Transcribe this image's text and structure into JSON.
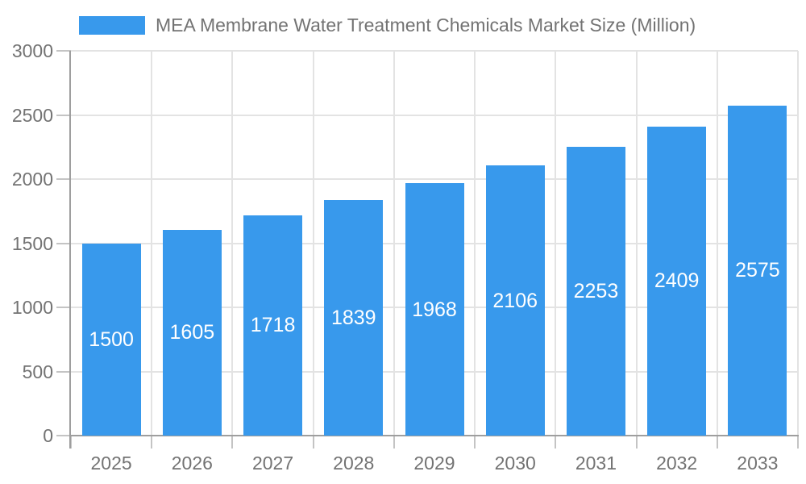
{
  "chart_data": {
    "type": "bar",
    "title": "MEA Membrane Water Treatment Chemicals Market Size (Million)",
    "categories": [
      "2025",
      "2026",
      "2027",
      "2028",
      "2029",
      "2030",
      "2031",
      "2032",
      "2033"
    ],
    "values": [
      1500,
      1605,
      1718,
      1839,
      1968,
      2106,
      2253,
      2409,
      2575
    ],
    "series_name": "MEA Membrane Water Treatment Chemicals Market Size (Million)",
    "xlabel": "",
    "ylabel": "",
    "ylim": [
      0,
      3000
    ],
    "yticks": [
      0,
      500,
      1000,
      1500,
      2000,
      2500,
      3000
    ],
    "grid": true,
    "legend_position": "top-left",
    "bar_value_labels": "inside-center"
  },
  "colors": {
    "bar": "#3899EC",
    "grid": "#E3E3E3",
    "axis": "#9E9E9E",
    "tick": "#C4C4C4",
    "label_text": "#737373",
    "bar_label_text": "#FFFFFF",
    "background": "#FFFFFF"
  }
}
